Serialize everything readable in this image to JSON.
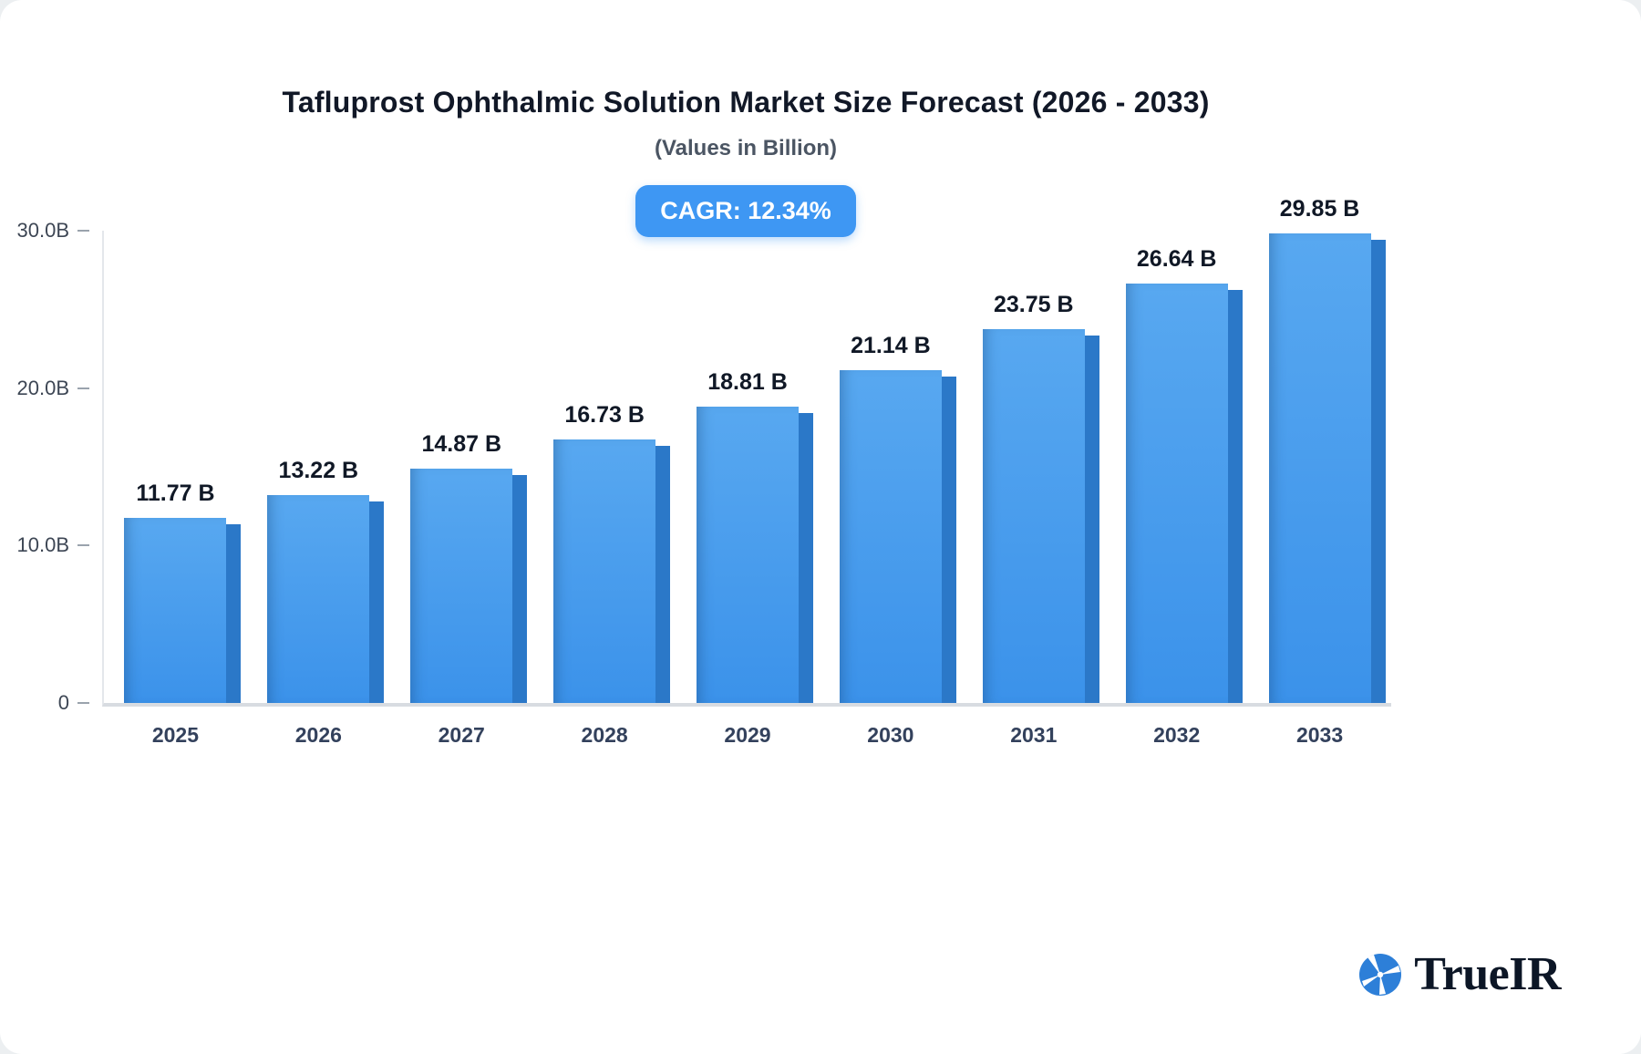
{
  "header": {
    "title": "Tafluprost Ophthalmic Solution Market Size Forecast (2026 - 2033)",
    "subtitle": "(Values in Billion)"
  },
  "badge": {
    "label": "CAGR: 12.34%",
    "color": "#3e97f3"
  },
  "chart_data": {
    "type": "bar",
    "title": "Tafluprost Ophthalmic Solution Market Size Forecast (2026 - 2033)",
    "subtitle": "(Values in Billion)",
    "cagr": "12.34%",
    "categories": [
      "2025",
      "2026",
      "2027",
      "2028",
      "2029",
      "2030",
      "2031",
      "2032",
      "2033"
    ],
    "values": [
      11.77,
      13.22,
      14.87,
      16.73,
      18.81,
      21.14,
      23.75,
      26.64,
      29.85
    ],
    "value_labels": [
      "11.77 B",
      "13.22 B",
      "14.87 B",
      "16.73 B",
      "18.81 B",
      "21.14 B",
      "23.75 B",
      "26.64 B",
      "29.85 B"
    ],
    "unit": "Billion",
    "xlabel": "",
    "ylabel": "",
    "ylim": [
      0,
      30
    ],
    "yticks": [
      {
        "value": 0,
        "label": "0"
      },
      {
        "value": 10,
        "label": "10.0B"
      },
      {
        "value": 20,
        "label": "20.0B"
      },
      {
        "value": 30,
        "label": "30.0B"
      }
    ],
    "legend": "none",
    "grid": "off",
    "colors": {
      "bar_top": "#58a8f0",
      "bar_bottom": "#3b92ea",
      "bar_side": "#2b78c8",
      "accent": "#3e97f3",
      "axis": "#d8dce1",
      "tick_text": "#3d4654",
      "label_text": "#101826"
    }
  },
  "logo": {
    "text": "TrueIR"
  }
}
